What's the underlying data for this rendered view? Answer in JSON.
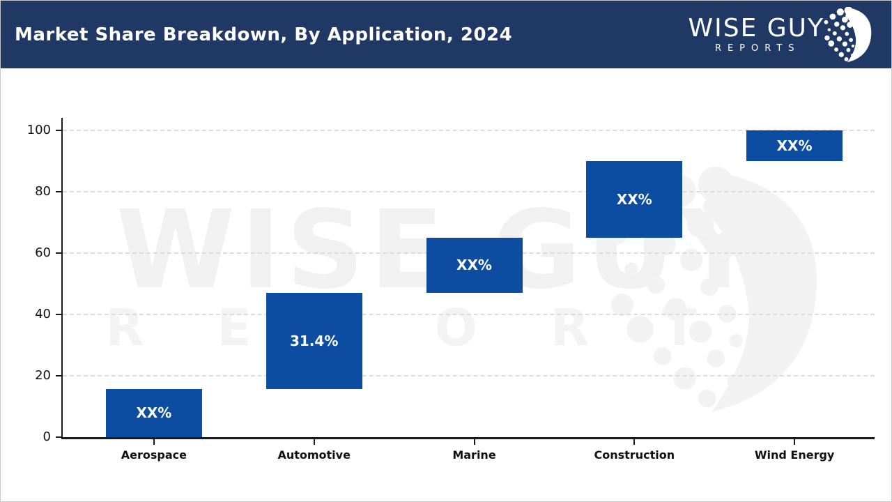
{
  "header": {
    "title": "Market Share Breakdown, By Application, 2024",
    "bg_color": "#203864",
    "logo_line1": "WISE GUY",
    "logo_line2": "REPORTS"
  },
  "watermark": {
    "line1": "WISE GUY",
    "line2": "R E P O R T S"
  },
  "chart_data": {
    "type": "bar",
    "subtype": "floating-waterfall",
    "title": "Market Share Breakdown, By Application, 2024",
    "categories": [
      "Aerospace",
      "Automotive",
      "Marine",
      "Construction",
      "Wind Energy"
    ],
    "series": [
      {
        "name": "Market Share (%)",
        "starts": [
          0,
          15.7,
          47.1,
          65.1,
          90
        ],
        "ends": [
          15.7,
          47.1,
          65.1,
          90,
          100
        ]
      }
    ],
    "bar_labels": [
      "XX%",
      "31.4%",
      "XX%",
      "XX%",
      "XX%"
    ],
    "bar_color": "#0c4da2",
    "label_color": "#ffffff",
    "yticks": [
      0,
      20,
      40,
      60,
      80,
      100
    ],
    "ylim": [
      0,
      104
    ],
    "xlabel": "",
    "ylabel": "",
    "grid": "horizontal-dashed",
    "legend": "none"
  }
}
